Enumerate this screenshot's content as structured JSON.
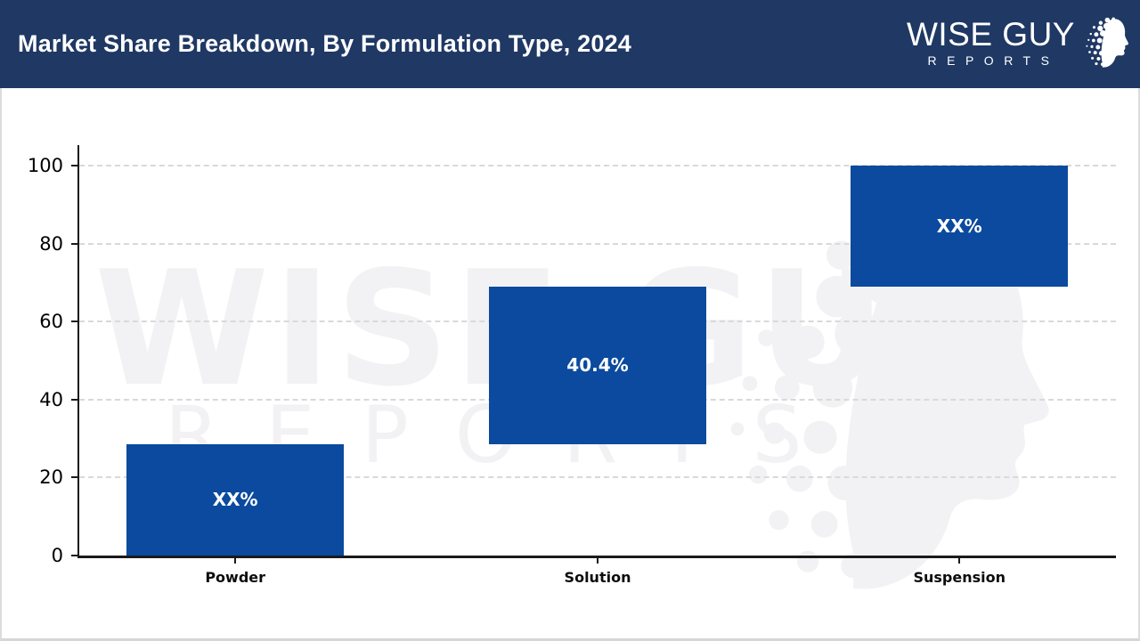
{
  "header": {
    "title": "Market Share Breakdown, By Formulation Type, 2024",
    "logo": {
      "line1": "WISE GUY",
      "line2": "REPORTS"
    }
  },
  "watermark": {
    "line1": "WISE GUY",
    "line2": "REPORTS"
  },
  "chart_data": {
    "type": "bar",
    "subtype": "floating-segment-bars",
    "title": "Market Share Breakdown, By Formulation Type, 2024",
    "categories": [
      "Powder",
      "Solution",
      "Suspension"
    ],
    "bars": [
      {
        "category": "Powder",
        "label": "XX%",
        "start": 0,
        "end": 28.6
      },
      {
        "category": "Solution",
        "label": "40.4%",
        "start": 28.6,
        "end": 69.0
      },
      {
        "category": "Suspension",
        "label": "XX%",
        "start": 69.0,
        "end": 100.0
      }
    ],
    "yticks": [
      0,
      20,
      40,
      60,
      80,
      100
    ],
    "ylim": [
      0,
      105.3
    ],
    "xlabel": "",
    "ylabel": "",
    "grid": "horizontal-dashed",
    "legend": "none",
    "colors": {
      "bar": "#0b4a9e",
      "bar_label": "#ffffff",
      "gridline": "#d9d9d9",
      "axis": "#1a1a1a",
      "tick_label": "#000000"
    }
  },
  "colors": {
    "header_bg": "#1f3864",
    "header_text": "#ffffff",
    "content_bg": "#ffffff",
    "watermark": "#f2f2f4",
    "border": "#dcdcdc"
  }
}
